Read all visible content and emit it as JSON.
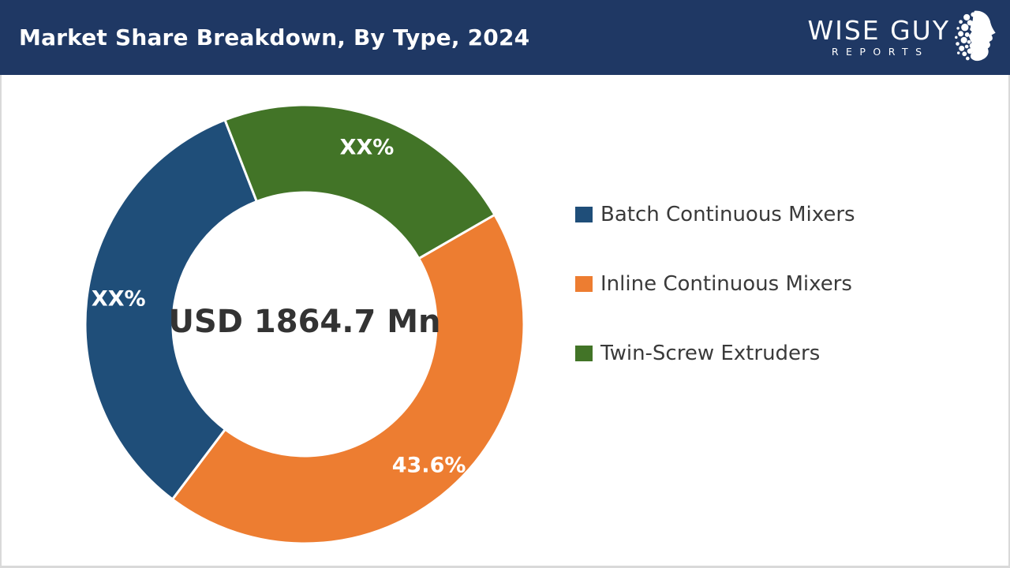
{
  "header": {
    "title": "Market Share Breakdown, By Type, 2024",
    "bg_color": "#1F3864",
    "logo": {
      "line1": "WISE GUY",
      "line2": "REPORTS"
    }
  },
  "chart_data": {
    "type": "pie",
    "subtype": "donut",
    "title": "Market Share Breakdown, By Type, 2024",
    "center_label": "USD 1864.7 Mn",
    "legend_position": "right",
    "start_angle_cw_deg": 338.7,
    "segments": [
      {
        "name": "Batch Continuous Mixers",
        "label": "XX%",
        "value": 33.8,
        "color": "#1F4E79"
      },
      {
        "name": "Inline Continuous Mixers",
        "label": "43.6%",
        "value": 43.6,
        "color": "#ED7D31"
      },
      {
        "name": "Twin-Screw Extruders",
        "label": "XX%",
        "value": 22.6,
        "color": "#427427"
      }
    ]
  },
  "watermark": {
    "line1": "WISE GUY",
    "line2": "REPORTS"
  },
  "colors": {
    "header_bg": "#1F3864",
    "border": "#D9D9D9",
    "watermark": "#F2F2F2",
    "legend_text": "#3A3A3A",
    "center_text": "#333333",
    "title_text": "#FFFFFF"
  }
}
